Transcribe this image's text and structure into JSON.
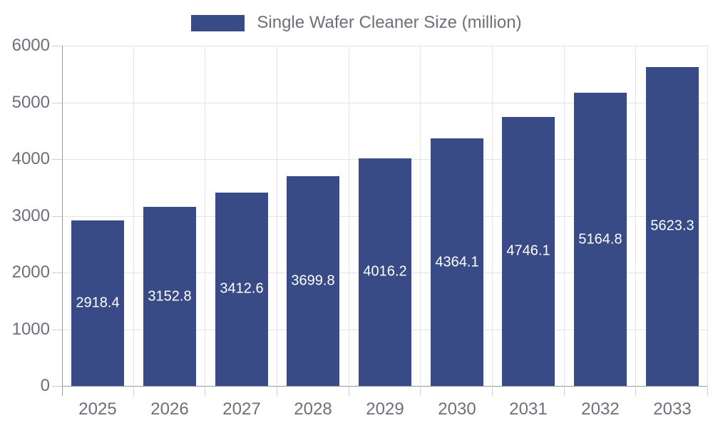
{
  "chart_data": {
    "type": "bar",
    "legend_label": "Single Wafer Cleaner Size (million)",
    "series": [
      {
        "name": "Single Wafer Cleaner Size (million)",
        "values": [
          2918.4,
          3152.8,
          3412.6,
          3699.8,
          4016.2,
          4364.1,
          4746.1,
          5164.8,
          5623.3
        ]
      }
    ],
    "categories": [
      "2025",
      "2026",
      "2027",
      "2028",
      "2029",
      "2030",
      "2031",
      "2032",
      "2033"
    ],
    "ylim": [
      0,
      6000
    ],
    "ytick_interval": 1000,
    "ytick_labels": [
      "0",
      "1000",
      "2000",
      "3000",
      "4000",
      "5000",
      "6000"
    ],
    "grid": true,
    "legend_position": "top-center",
    "value_label_position": "inside-center",
    "colors": {
      "bar": "#394B87",
      "bar_value_label": "#FFFFFF",
      "axis_line": "#999999",
      "tick": "#CFCFCF",
      "grid_line": "#E4E4E4",
      "axis_text": "#6E7079",
      "legend_text": "#6E7079",
      "background": "#FFFFFF"
    }
  }
}
